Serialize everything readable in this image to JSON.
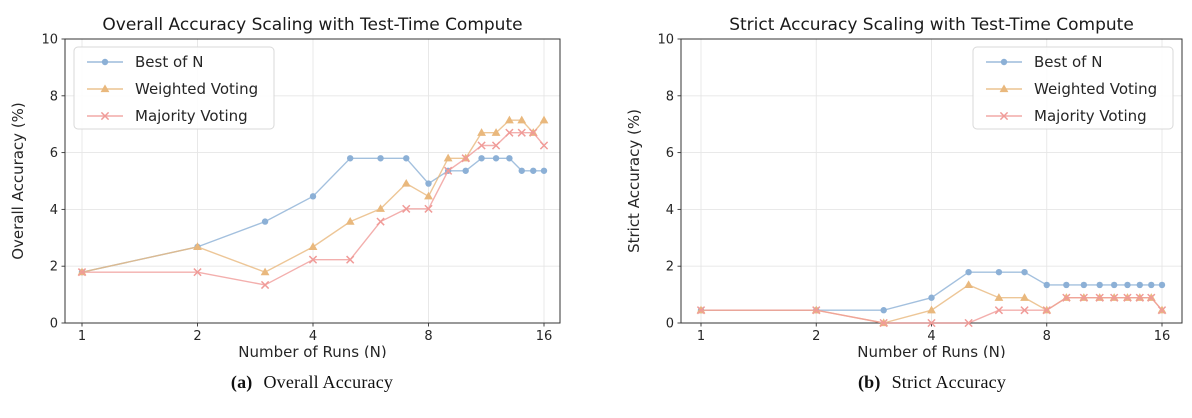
{
  "figure": {
    "captions": [
      {
        "label": "(a)",
        "text": "Overall Accuracy"
      },
      {
        "label": "(b)",
        "text": "Strict Accuracy"
      }
    ]
  },
  "colors": {
    "best_of_n": "#8cb0d6",
    "weighted_voting": "#e9b87d",
    "majority_voting": "#f09b98",
    "grid": "#e6e6e6",
    "spine": "#333333",
    "text": "#262626",
    "title": "#1a1a1a",
    "legend_border": "#d9d9d9"
  },
  "chart_data": [
    {
      "type": "line",
      "title": "Overall Accuracy Scaling with Test-Time Compute",
      "xlabel": "Number of Runs (N)",
      "ylabel": "Overall Accuracy (%)",
      "xscale": "log2",
      "x": [
        1,
        2,
        3,
        4,
        5,
        6,
        7,
        8,
        9,
        10,
        11,
        12,
        13,
        14,
        15,
        16
      ],
      "xticks": [
        1,
        2,
        4,
        8,
        16
      ],
      "xtick_labels": [
        "1",
        "2",
        "4",
        "8",
        "16"
      ],
      "yticks": [
        0,
        2,
        4,
        6,
        8,
        10
      ],
      "ytick_labels": [
        "0",
        "2",
        "4",
        "6",
        "8",
        "10"
      ],
      "ylim": [
        0,
        10
      ],
      "grid": true,
      "legend_position": "top-left",
      "series": [
        {
          "name": "Best of N",
          "color": "#8cb0d6",
          "marker": "circle",
          "values": [
            1.79,
            2.68,
            3.57,
            4.46,
            5.8,
            5.8,
            5.8,
            4.91,
            5.36,
            5.36,
            5.8,
            5.8,
            5.8,
            5.36,
            5.36,
            5.36
          ]
        },
        {
          "name": "Weighted Voting",
          "color": "#e9b87d",
          "marker": "triangle",
          "values": [
            1.79,
            2.68,
            1.79,
            2.68,
            3.57,
            4.02,
            4.91,
            4.46,
            5.8,
            5.8,
            6.7,
            6.7,
            7.14,
            7.14,
            6.7,
            7.14
          ]
        },
        {
          "name": "Majority Voting",
          "color": "#f09b98",
          "marker": "x",
          "values": [
            1.79,
            1.79,
            1.34,
            2.23,
            2.23,
            3.57,
            4.02,
            4.02,
            5.36,
            5.8,
            6.25,
            6.25,
            6.7,
            6.7,
            6.7,
            6.25
          ]
        }
      ]
    },
    {
      "type": "line",
      "title": "Strict Accuracy Scaling with Test-Time Compute",
      "xlabel": "Number of Runs (N)",
      "ylabel": "Strict Accuracy (%)",
      "xscale": "log2",
      "x": [
        1,
        2,
        3,
        4,
        5,
        6,
        7,
        8,
        9,
        10,
        11,
        12,
        13,
        14,
        15,
        16
      ],
      "xticks": [
        1,
        2,
        4,
        8,
        16
      ],
      "xtick_labels": [
        "1",
        "2",
        "4",
        "8",
        "16"
      ],
      "yticks": [
        0,
        2,
        4,
        6,
        8,
        10
      ],
      "ytick_labels": [
        "0",
        "2",
        "4",
        "6",
        "8",
        "10"
      ],
      "ylim": [
        0,
        10
      ],
      "grid": true,
      "legend_position": "top-right",
      "series": [
        {
          "name": "Best of N",
          "color": "#8cb0d6",
          "marker": "circle",
          "values": [
            0.45,
            0.45,
            0.45,
            0.89,
            1.79,
            1.79,
            1.79,
            1.34,
            1.34,
            1.34,
            1.34,
            1.34,
            1.34,
            1.34,
            1.34,
            1.34
          ]
        },
        {
          "name": "Weighted Voting",
          "color": "#e9b87d",
          "marker": "triangle",
          "values": [
            0.45,
            0.45,
            0.0,
            0.45,
            1.34,
            0.89,
            0.89,
            0.45,
            0.89,
            0.89,
            0.89,
            0.89,
            0.89,
            0.89,
            0.89,
            0.45
          ]
        },
        {
          "name": "Majority Voting",
          "color": "#f09b98",
          "marker": "x",
          "values": [
            0.45,
            0.45,
            0.0,
            0.0,
            0.0,
            0.45,
            0.45,
            0.45,
            0.89,
            0.89,
            0.89,
            0.89,
            0.89,
            0.89,
            0.89,
            0.45
          ]
        }
      ]
    }
  ]
}
